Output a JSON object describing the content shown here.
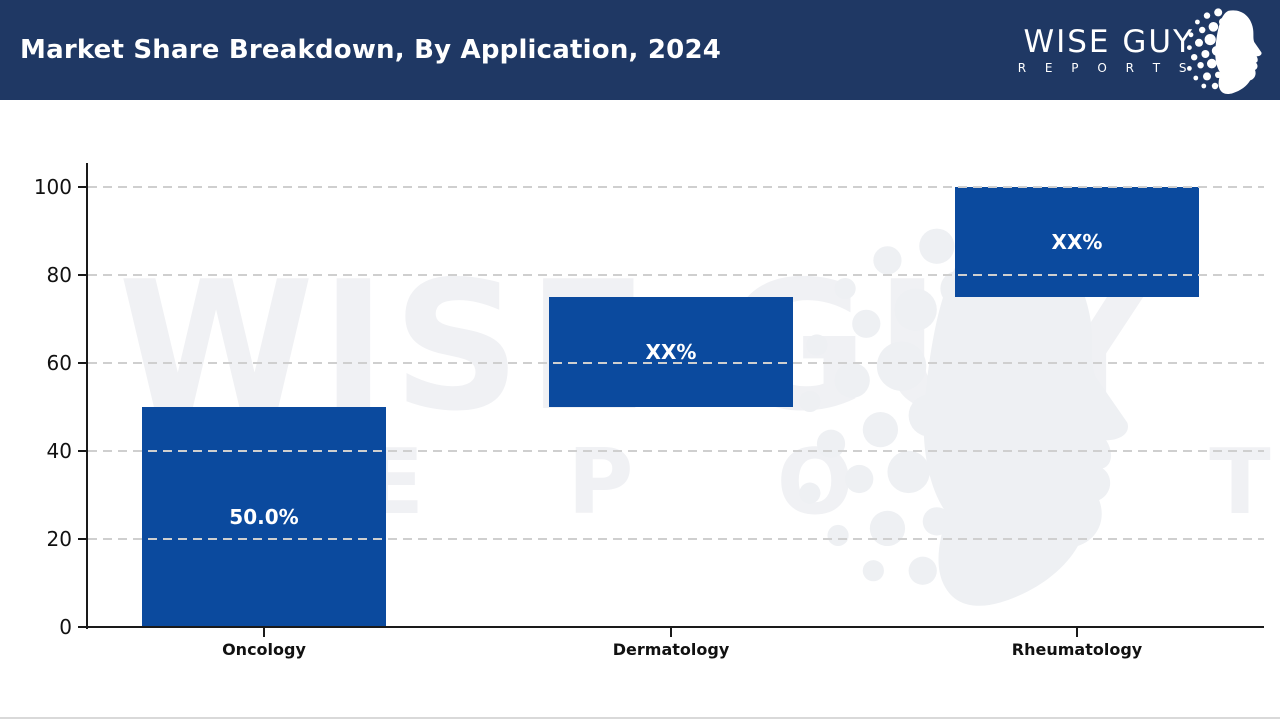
{
  "header": {
    "title": "Market Share Breakdown, By Application, 2024",
    "logo": {
      "line1": "WISE GUY",
      "line2": "R E P O R T S"
    }
  },
  "watermark": {
    "line1": "WISE GUY",
    "line2": "R E P O R T S"
  },
  "chart_data": {
    "type": "bar",
    "subtype": "waterfall",
    "title": "Market Share Breakdown, By Application, 2024",
    "xlabel": "",
    "ylabel": "",
    "categories": [
      "Oncology",
      "Dermatology",
      "Rheumatology"
    ],
    "bars": [
      {
        "category": "Oncology",
        "start": 0,
        "end": 50,
        "value": 50,
        "label": "50.0%"
      },
      {
        "category": "Dermatology",
        "start": 50,
        "end": 75,
        "value": 25,
        "label": "XX%"
      },
      {
        "category": "Rheumatology",
        "start": 75,
        "end": 100,
        "value": 25,
        "label": "XX%"
      }
    ],
    "ylim": [
      0,
      100
    ],
    "yticks": [
      0,
      20,
      40,
      60,
      80,
      100
    ],
    "grid": "horizontal dashed, drawn over bars",
    "legend": "none"
  },
  "colors": {
    "header_bg": "#1f3864",
    "bar": "#0b4a9e",
    "bar_label": "#ffffff",
    "grid": "#cfcfcf",
    "axis": "#1a1a1a",
    "watermark": "#f0f1f4",
    "bottom_line": "#d9d9d9"
  }
}
